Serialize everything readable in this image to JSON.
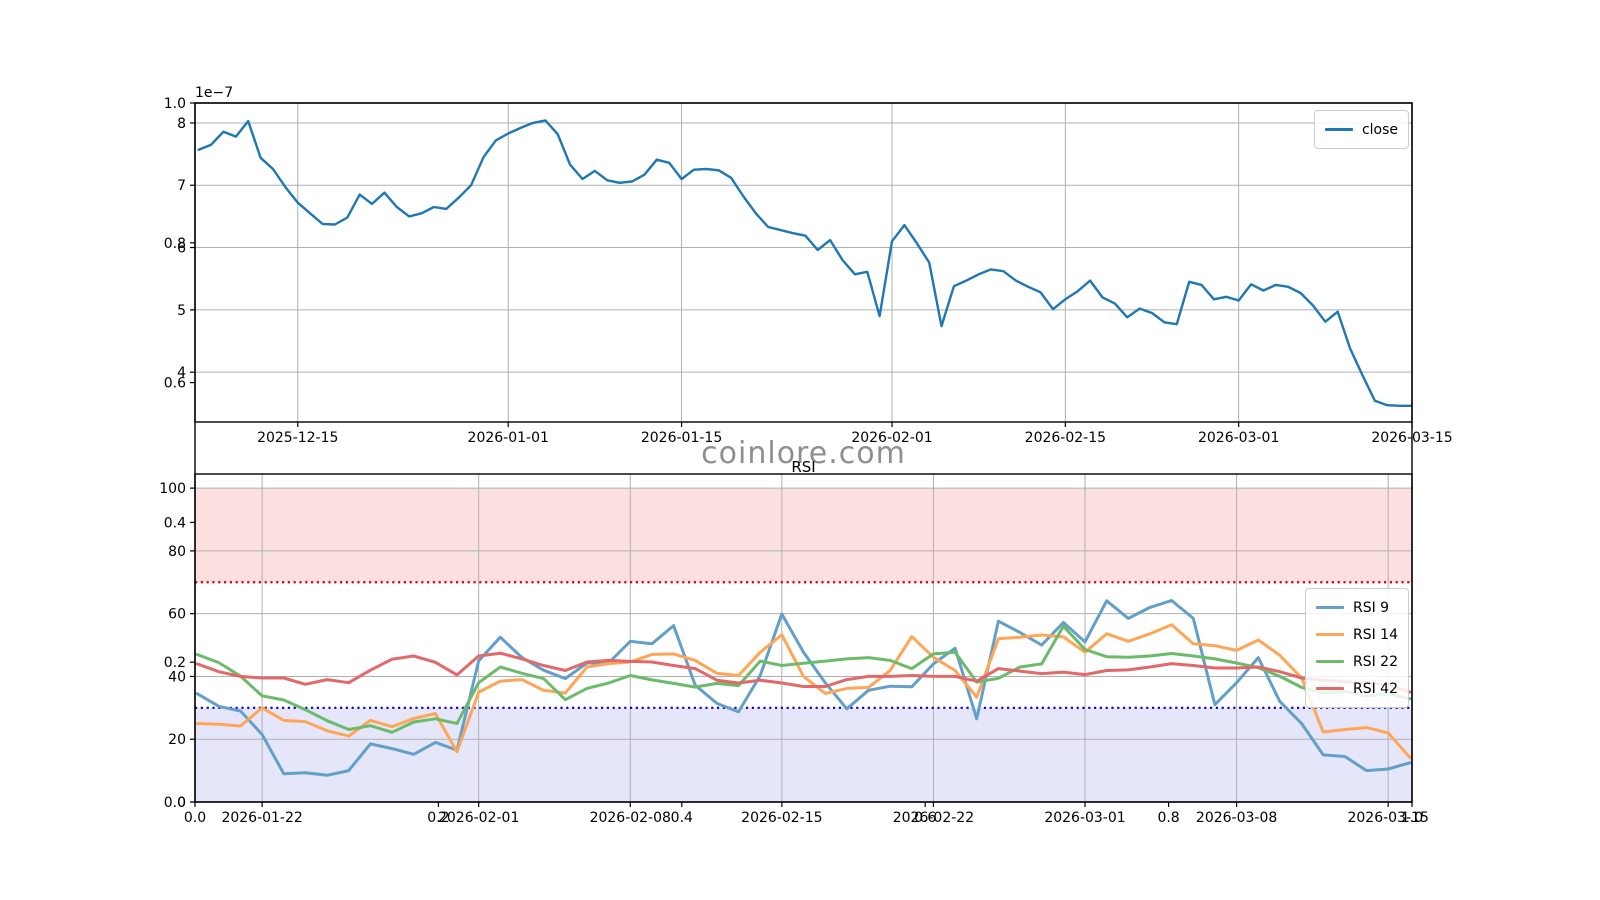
{
  "watermark": "coinlore.com",
  "colors": {
    "close_line": "#1f77b4",
    "rsi9": "#62a0ca",
    "rsi14": "#ffa656",
    "rsi22": "#6bbb6b",
    "rsi42": "#e26869",
    "overbought_line": "#dd0000",
    "oversold_line": "#0000cc",
    "overbought_band": "rgba(235,50,50,0.15)",
    "oversold_band": "rgba(60,60,220,0.13)",
    "grid": "#b0b0b0",
    "spine": "#000000",
    "watermark_color": "#7c7c7c"
  },
  "chart_data": [
    {
      "type": "line",
      "title": "",
      "offset_text": "1e−7",
      "legend_position": "upper right",
      "grid": true,
      "ylim": [
        3.2,
        8.32
      ],
      "yticks": [
        4,
        5,
        6,
        7,
        8
      ],
      "xtick_labels": [
        "2025-12-15",
        "2026-01-01",
        "2026-01-15",
        "2026-02-01",
        "2026-02-15",
        "2026-03-01",
        "2026-03-15"
      ],
      "xtick_indices": [
        8,
        25,
        39,
        56,
        70,
        84,
        98
      ],
      "x_start_label": "2025-12-07",
      "series": [
        {
          "name": "close",
          "color": "#1f77b4",
          "values": [
            7.57,
            7.65,
            7.86,
            7.78,
            8.03,
            7.44,
            7.26,
            6.97,
            6.72,
            6.55,
            6.38,
            6.37,
            6.48,
            6.85,
            6.7,
            6.88,
            6.65,
            6.5,
            6.55,
            6.65,
            6.62,
            6.8,
            7.0,
            7.45,
            7.72,
            7.83,
            7.92,
            8.0,
            8.04,
            7.82,
            7.33,
            7.1,
            7.23,
            7.08,
            7.04,
            7.06,
            7.17,
            7.41,
            7.36,
            7.1,
            7.25,
            7.26,
            7.24,
            7.12,
            6.82,
            6.55,
            6.33,
            6.28,
            6.23,
            6.19,
            5.96,
            6.12,
            5.8,
            5.57,
            5.61,
            4.9,
            6.1,
            6.36,
            6.07,
            5.76,
            4.74,
            5.38,
            5.47,
            5.57,
            5.65,
            5.62,
            5.47,
            5.37,
            5.28,
            5.01,
            5.17,
            5.3,
            5.47,
            5.2,
            5.1,
            4.88,
            5.02,
            4.95,
            4.8,
            4.77,
            5.45,
            5.4,
            5.17,
            5.21,
            5.15,
            5.41,
            5.31,
            5.4,
            5.37,
            5.27,
            5.07,
            4.81,
            4.97,
            4.38,
            3.95,
            3.54,
            3.47,
            3.46,
            3.46
          ]
        }
      ]
    },
    {
      "type": "line",
      "title": "RSI",
      "legend_position": "right",
      "grid": true,
      "ylim": [
        0,
        104.5
      ],
      "yticks": [
        0,
        20,
        40,
        60,
        80,
        100
      ],
      "xtick_labels": [
        "2026-01-22",
        "2026-02-01",
        "2026-02-08",
        "2026-02-15",
        "2026-02-22",
        "2026-03-01",
        "2026-03-08",
        "2026-03-15"
      ],
      "xtick_indices": [
        3,
        13,
        20,
        27,
        34,
        41,
        48,
        55
      ],
      "x_start_label": "2026-01-19",
      "hlines": [
        {
          "y": 70,
          "color": "#dd0000",
          "style": "dotted",
          "name": "overbought-70"
        },
        {
          "y": 30,
          "color": "#0000cc",
          "style": "dotted",
          "name": "oversold-30"
        }
      ],
      "bands": [
        {
          "from": 70,
          "to": 100,
          "color": "rgba(235,50,50,0.15)",
          "name": "overbought-band"
        },
        {
          "from": 0,
          "to": 30,
          "color": "rgba(60,60,220,0.13)",
          "name": "oversold-band"
        }
      ],
      "series": [
        {
          "name": "RSI 9",
          "color": "#62a0ca",
          "values": [
            34.5,
            30.5,
            29,
            21.5,
            9,
            9.3,
            8.5,
            10,
            18.5,
            17,
            15.2,
            19,
            16.5,
            45,
            52.5,
            46,
            42,
            39.3,
            44.3,
            44.3,
            51.2,
            50.4,
            56.2,
            37.2,
            31.4,
            28.7,
            40.3,
            59.9,
            47.7,
            38,
            29.7,
            35.6,
            36.9,
            36.7,
            44,
            49,
            26.5,
            57.6,
            54,
            50,
            57.2,
            51,
            64.1,
            58.5,
            62,
            64.2,
            58.5,
            31,
            38,
            46,
            32,
            25,
            15,
            14.5,
            10,
            10.5,
            12.5
          ]
        },
        {
          "name": "RSI 14",
          "color": "#ffa656",
          "values": [
            25,
            24.8,
            24.2,
            30,
            26,
            25.6,
            22.7,
            21,
            26,
            24,
            26.6,
            28.2,
            16,
            35,
            38.5,
            39,
            35.6,
            34.7,
            43,
            44.1,
            44.6,
            47,
            47.2,
            45.1,
            41,
            40.3,
            47.7,
            53.3,
            40,
            34.6,
            36.2,
            36.5,
            41.9,
            52.7,
            46.1,
            41.9,
            33.4,
            52,
            52.5,
            53.2,
            52.6,
            47.7,
            53.6,
            51.2,
            53.6,
            56.5,
            50.4,
            49.8,
            48.3,
            51.6,
            46.7,
            39.5,
            22.3,
            23.1,
            23.7,
            22,
            14.2
          ]
        },
        {
          "name": "RSI 22",
          "color": "#6bbb6b",
          "values": [
            47,
            44.4,
            40.1,
            33.8,
            32.5,
            29.4,
            25.9,
            23.1,
            24.3,
            22.2,
            25.5,
            26.5,
            25,
            38,
            43,
            41,
            39.3,
            32.6,
            36.2,
            37.9,
            40.3,
            38.9,
            37.8,
            36.6,
            37.8,
            37.1,
            44.9,
            43.5,
            44.2,
            44.9,
            45.6,
            46,
            45.1,
            42.5,
            47.2,
            47.7,
            38.2,
            39.4,
            43,
            44,
            56,
            48.6,
            46.3,
            46.1,
            46.5,
            47.3,
            46.5,
            45.6,
            44.3,
            42.8,
            40,
            36.5,
            34.7,
            35.2,
            33.7,
            34.5,
            32.9
          ]
        },
        {
          "name": "RSI 42",
          "color": "#e26869",
          "values": [
            44,
            41.5,
            40,
            39.5,
            39.5,
            37.5,
            39,
            38,
            42,
            45.5,
            46.5,
            44.5,
            40.5,
            46.5,
            47.4,
            45.6,
            43.5,
            41.9,
            44.6,
            45.1,
            44.8,
            44.6,
            43.5,
            42.5,
            38.8,
            37.9,
            38.8,
            37.9,
            36.8,
            36.8,
            39,
            40,
            40,
            40.3,
            40,
            40,
            38.5,
            42.5,
            41.7,
            40.9,
            41.4,
            40.6,
            41.9,
            42.1,
            43,
            44.1,
            43.5,
            42.7,
            42.7,
            43,
            41.5,
            39.5,
            38.8,
            38.3,
            38,
            37.3,
            35
          ]
        }
      ]
    }
  ],
  "overlay_axis": {
    "xticks": [
      "0.0",
      "0.2",
      "0.4",
      "0.6",
      "0.8",
      "1.0"
    ],
    "yticks": [
      "0.0",
      "0.2",
      "0.4",
      "0.6",
      "0.8",
      "1.0"
    ]
  }
}
